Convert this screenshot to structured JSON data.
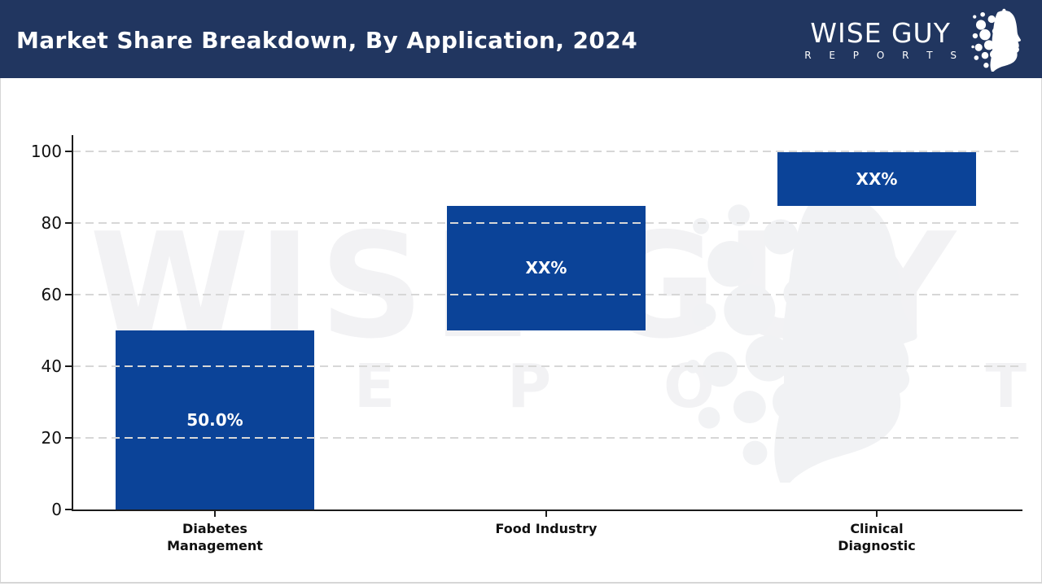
{
  "header": {
    "title": "Market Share Breakdown, By Application, 2024",
    "logo": {
      "line1": "WISE GUY",
      "line2": "REPORTS"
    }
  },
  "watermark": {
    "line1": "WISE GUY",
    "line2": "REPORTS"
  },
  "colors": {
    "header_bg": "#213660",
    "bar_fill": "#0b4398",
    "grid": "#d7d7d7",
    "axis": "#1c1c1c",
    "bar_label_text": "#ffffff",
    "watermark": "#f2f2f4"
  },
  "chart_data": {
    "type": "bar",
    "subtype": "floating-segment-waterfall",
    "title": "Market Share Breakdown, By Application, 2024",
    "categories": [
      "Diabetes Management",
      "Food Industry",
      "Clinical Diagnostic"
    ],
    "category_label_lines": [
      [
        "Diabetes",
        "Management"
      ],
      [
        "Food Industry"
      ],
      [
        "Clinical",
        "Diagnostic"
      ]
    ],
    "segments": [
      {
        "category": "Diabetes Management",
        "from": 0,
        "to": 50,
        "label": "50.0%"
      },
      {
        "category": "Food Industry",
        "from": 50,
        "to": 84.8,
        "label": "XX%"
      },
      {
        "category": "Clinical Diagnostic",
        "from": 84.8,
        "to": 99.8,
        "label": "XX%"
      }
    ],
    "yticks": [
      0,
      20,
      40,
      60,
      80,
      100
    ],
    "ylim": [
      0,
      104.5
    ],
    "xlabel": "",
    "ylabel": "",
    "grid": "dashed-horizontal",
    "legend": false
  }
}
